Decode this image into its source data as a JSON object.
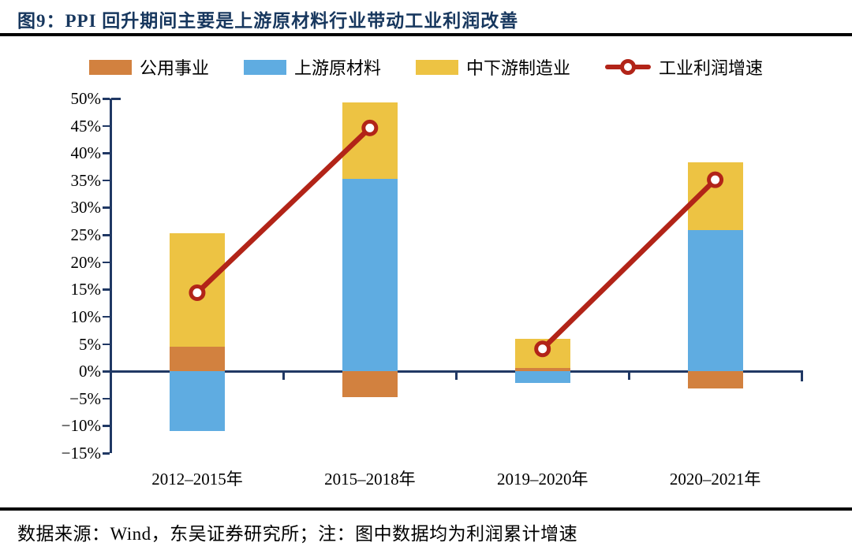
{
  "page": {
    "title": "图9：PPI 回升期间主要是上游原材料行业带动工业利润改善",
    "source_note": "数据来源：Wind，东吴证券研究所；注：图中数据均为利润累计增速"
  },
  "colors": {
    "title": "#17375E",
    "rule": "#000000",
    "axis": "#203864",
    "text": "#000000"
  },
  "chart_data": {
    "type": "bar",
    "subtype": "stacked-bars-with-line-overlay",
    "title": "PPI 回升期间主要是上游原材料行业带动工业利润改善",
    "categories": [
      "2012–2015年",
      "2015–2018年",
      "2019–2020年",
      "2020–2021年"
    ],
    "series": [
      {
        "name": "公用事业",
        "color": "#D2813F",
        "values": [
          4.5,
          -4.7,
          0.6,
          -3.2
        ]
      },
      {
        "name": "上游原材料",
        "color": "#5FACE1",
        "values": [
          -11.0,
          35.2,
          -2.1,
          25.9
        ]
      },
      {
        "name": "中下游制造业",
        "color": "#EDC343",
        "values": [
          20.8,
          14.1,
          5.3,
          12.4
        ]
      }
    ],
    "line_series": {
      "name": "工业利润增速",
      "color": "#B22418",
      "values": [
        14.4,
        44.6,
        4.1,
        35.1
      ],
      "segments": [
        [
          0,
          1
        ],
        [
          2,
          3
        ]
      ]
    },
    "ylim": [
      -15,
      50
    ],
    "ytick_step": 5,
    "ytick_labels": [
      "50%",
      "45%",
      "40%",
      "35%",
      "30%",
      "25%",
      "20%",
      "15%",
      "10%",
      "5%",
      "0%",
      "−5%",
      "−10%",
      "−15%"
    ],
    "unit": "%",
    "legend_position": "top",
    "grid": false,
    "note": "图中数据均为利润累计增速"
  }
}
